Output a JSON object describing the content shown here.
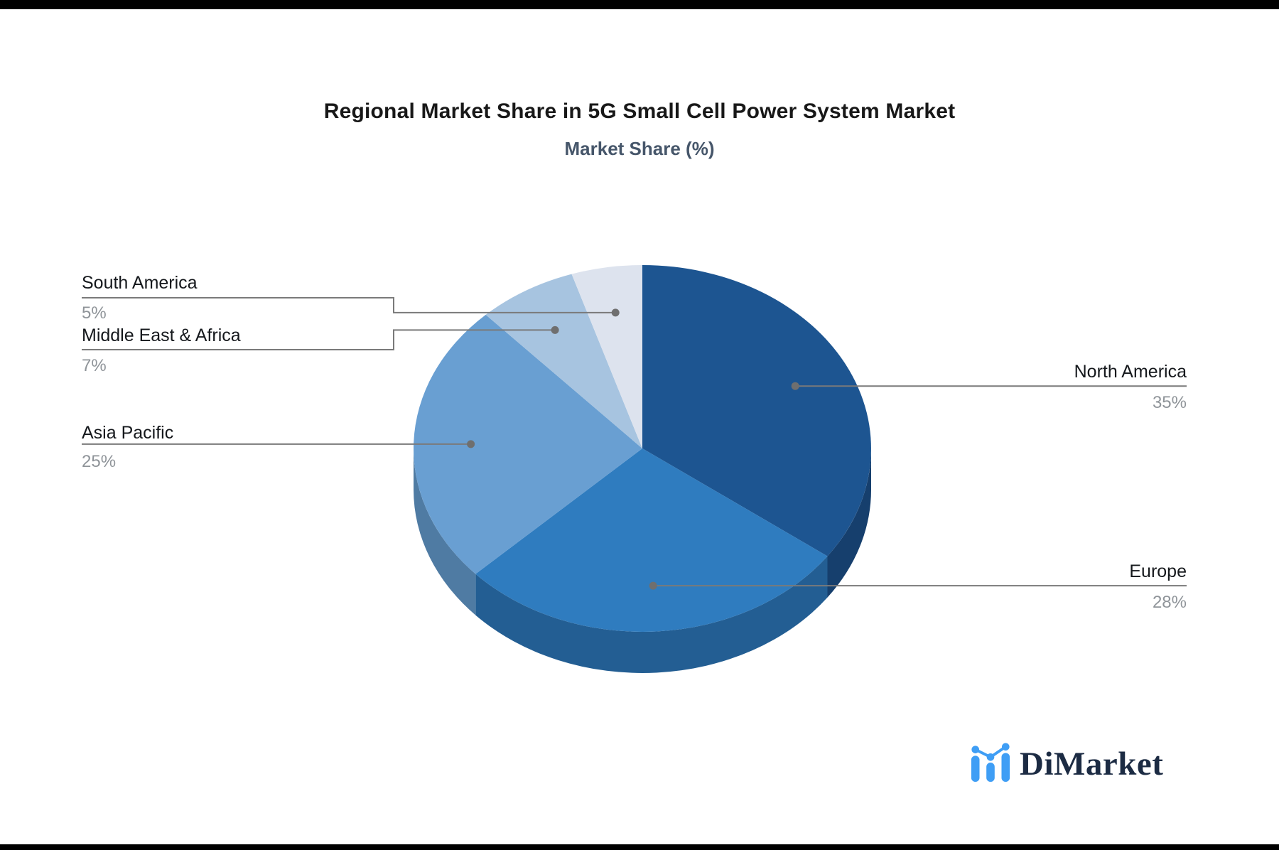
{
  "title": "Regional Market Share in 5G Small Cell Power System Market",
  "subtitle": "Market Share (%)",
  "chart_data": {
    "type": "pie",
    "style": "3d",
    "unit": "%",
    "start_angle_deg": 0,
    "direction": "clockwise",
    "categories": [
      "North America",
      "Europe",
      "Asia Pacific",
      "Middle East & Africa",
      "South America"
    ],
    "values": [
      35,
      28,
      25,
      7,
      5
    ],
    "colors": [
      "#1d5591",
      "#2f7cbf",
      "#699fd2",
      "#a7c4e0",
      "#dde3ee"
    ],
    "side_colors": [
      "#163f6d",
      "#235e93",
      "#4f7ba3",
      "#7e9cb8",
      "#aab3c4"
    ],
    "leader_line_color": "#7a7a7a",
    "dot_color": "#6f6f6f"
  },
  "slices": [
    {
      "label": "North America",
      "pct": "35%"
    },
    {
      "label": "Europe",
      "pct": "28%"
    },
    {
      "label": "Asia Pacific",
      "pct": "25%"
    },
    {
      "label": "Middle East & Africa",
      "pct": "7%"
    },
    {
      "label": "South America",
      "pct": "5%"
    }
  ],
  "branding": {
    "logo_text": "DiMarket",
    "logo_color": "#3f9ef5"
  }
}
